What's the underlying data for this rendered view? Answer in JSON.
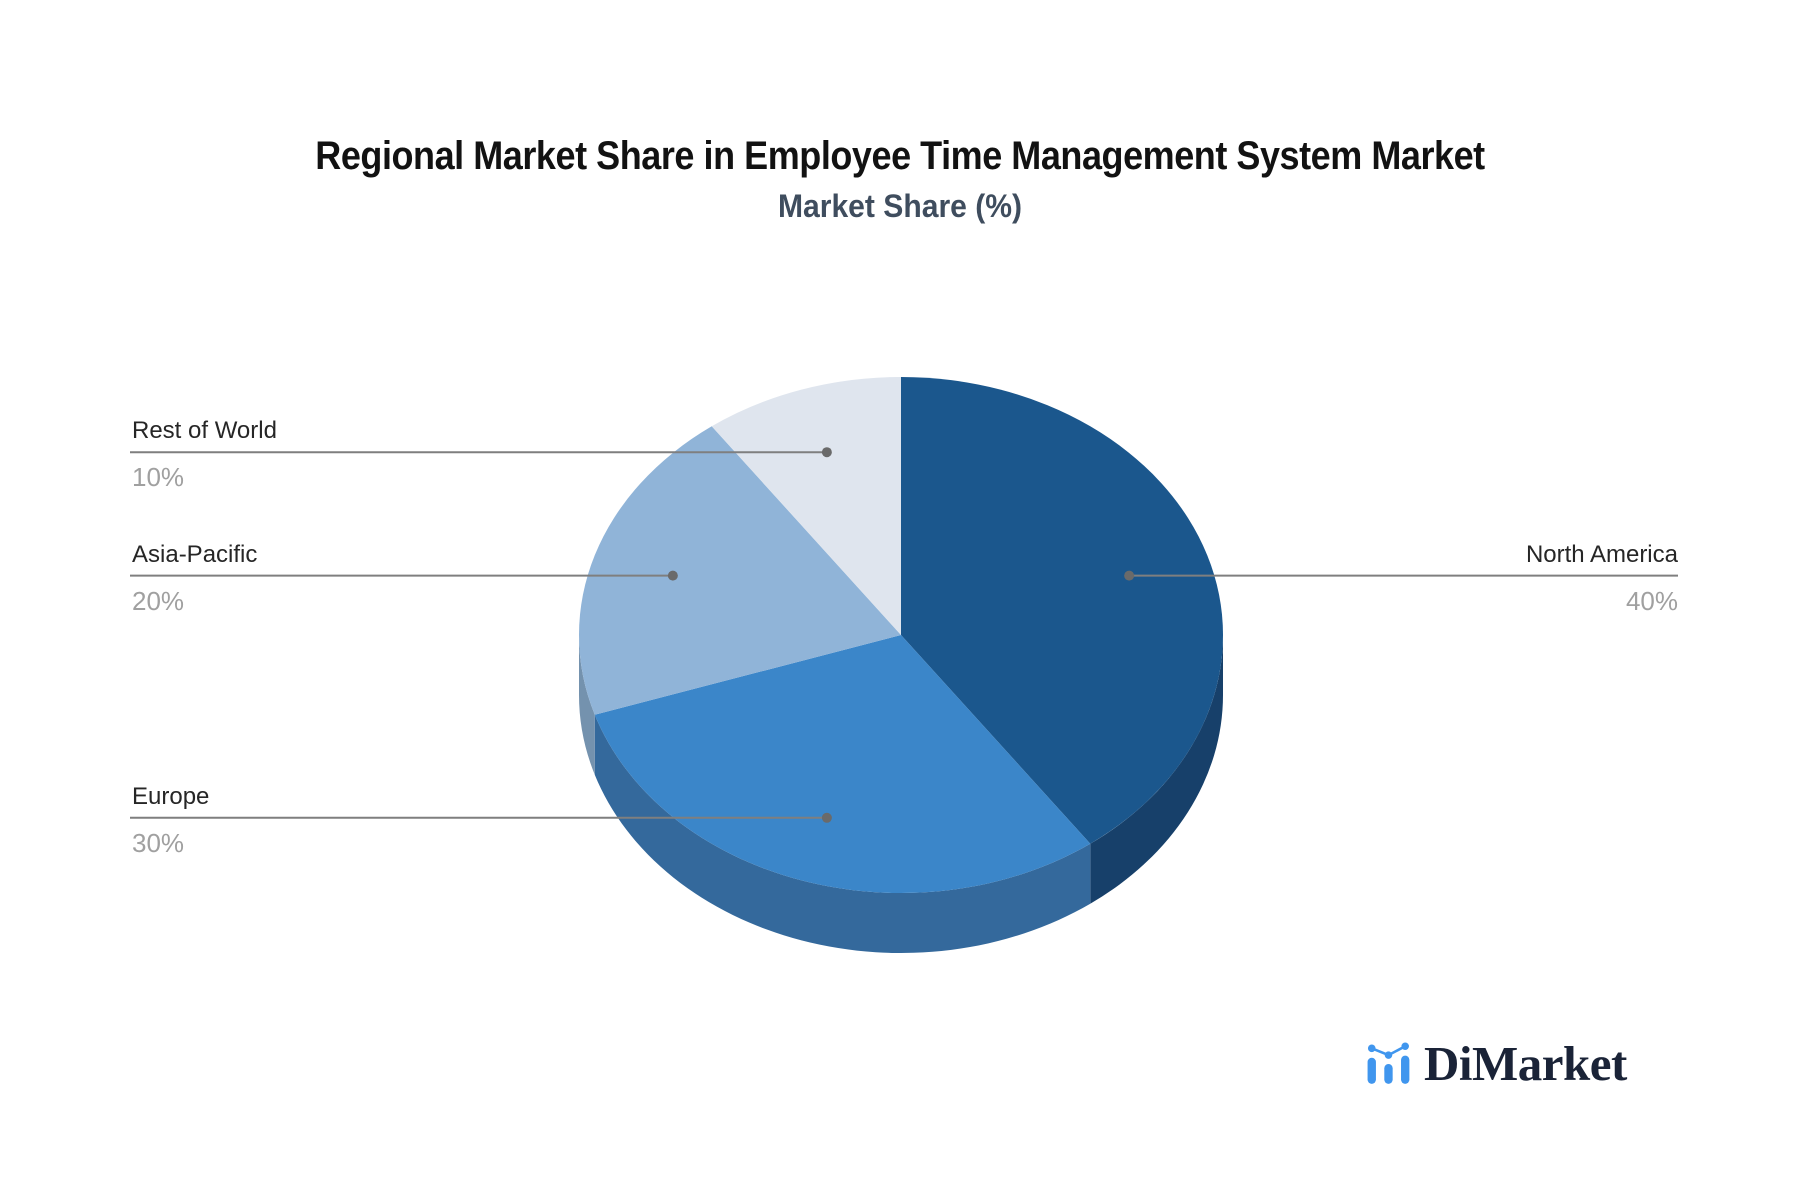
{
  "chart_data": {
    "type": "pie",
    "style": "3d-pie",
    "title": "Regional Market Share in Employee Time Management System Market",
    "subtitle": "Market Share (%)",
    "unit": "%",
    "start_angle": "12-oclock",
    "direction": "clockwise",
    "legend": "none (callout labels)",
    "slices": [
      {
        "label": "North America",
        "value": 40,
        "pct_label": "40%",
        "color": "#1b578d",
        "wall_color": "#17406a",
        "callout_side": "right"
      },
      {
        "label": "Europe",
        "value": 30,
        "pct_label": "30%",
        "color": "#3b86c9",
        "wall_color": "#34699c",
        "callout_side": "left"
      },
      {
        "label": "Asia-Pacific",
        "value": 20,
        "pct_label": "20%",
        "color": "#90b4d8",
        "wall_color": "#7492ae",
        "callout_side": "left"
      },
      {
        "label": "Rest of World",
        "value": 10,
        "pct_label": "10%",
        "color": "#dfe5ee",
        "wall_color": "#b9c4d3",
        "callout_side": "left"
      }
    ]
  },
  "colors": {
    "background": "#ffffff",
    "title": "#121212",
    "subtitle": "#3f4d5e",
    "label_text": "#262626",
    "percent_text": "#a0a0a0",
    "callout_line": "#7f7f7f",
    "callout_dot": "#6a6a6a",
    "logo_text": "#1a2337",
    "logo_icon": "#4096ee"
  },
  "branding": {
    "logo_text": "DiMarket"
  }
}
